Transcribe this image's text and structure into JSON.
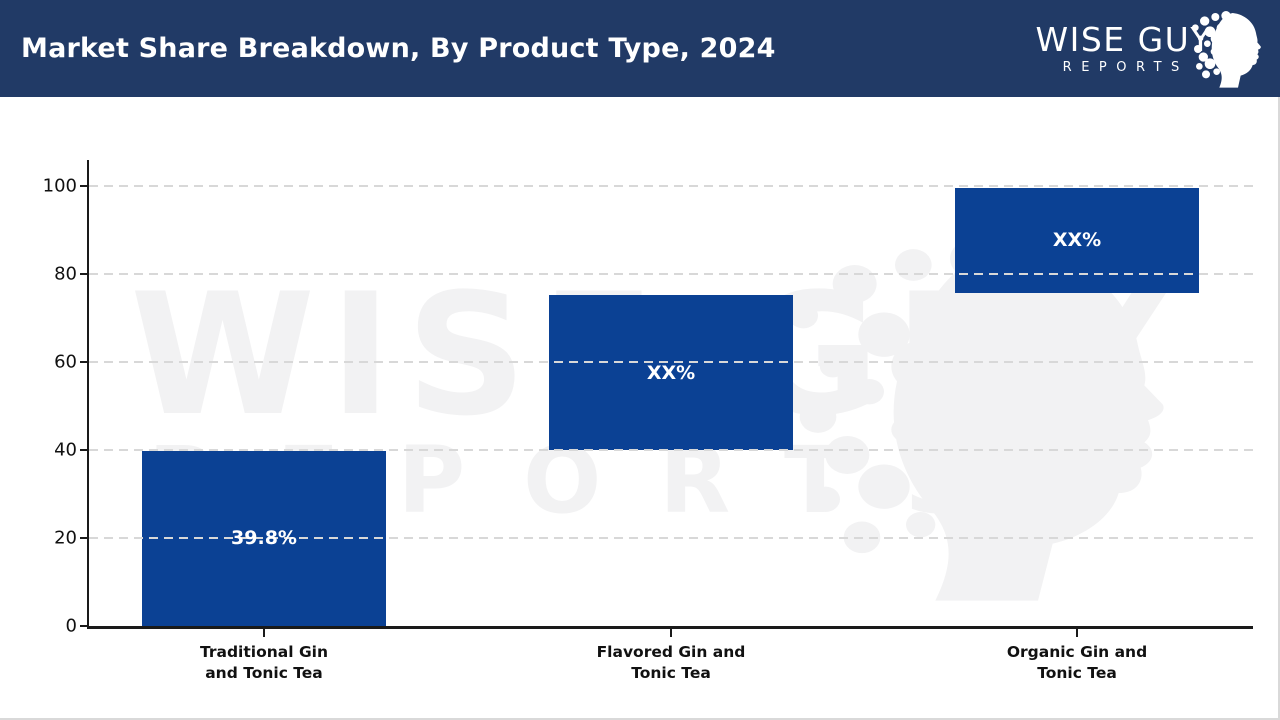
{
  "header": {
    "title": "Market Share Breakdown, By Product Type, 2024",
    "logo": {
      "line1": "WISE GUY",
      "line2": "REPORTS"
    }
  },
  "watermark": {
    "line1": "WISE GUY",
    "line2": "REPORTS"
  },
  "colors": {
    "header_bg": "#213a66",
    "bar_blue": "#0b4194",
    "grid_gray": "#d8d8d8",
    "axis_black": "#1a1a1a",
    "watermark_gray": "#f2f2f3",
    "edge_hairline": "#d9d9d9",
    "title_text": "#ffffff",
    "tick_text": "#111111"
  },
  "chart_data": {
    "type": "bar",
    "subtype": "floating_waterfall",
    "title": "Market Share Breakdown, By Product Type, 2024",
    "categories": [
      {
        "line1": "Traditional Gin",
        "line2": "and Tonic Tea"
      },
      {
        "line1": "Flavored Gin and",
        "line2": "Tonic Tea"
      },
      {
        "line1": "Organic Gin and",
        "line2": "Tonic Tea"
      }
    ],
    "series": [
      {
        "name": "Traditional Gin and Tonic Tea",
        "start": 0,
        "end": 39.8,
        "label": "39.8%"
      },
      {
        "name": "Flavored Gin and Tonic Tea",
        "start": 40,
        "end": 75.2,
        "label": "XX%"
      },
      {
        "name": "Organic Gin and Tonic Tea",
        "start": 75.7,
        "end": 99.6,
        "label": "XX%"
      }
    ],
    "ylim": [
      0,
      100
    ],
    "yticks": [
      0,
      20,
      40,
      60,
      80,
      100
    ],
    "xlabel": "",
    "ylabel": "",
    "grid": "horizontal-dashed",
    "legend": "none",
    "bar_color": "#0b4194",
    "value_label_color": "#ffffff"
  }
}
